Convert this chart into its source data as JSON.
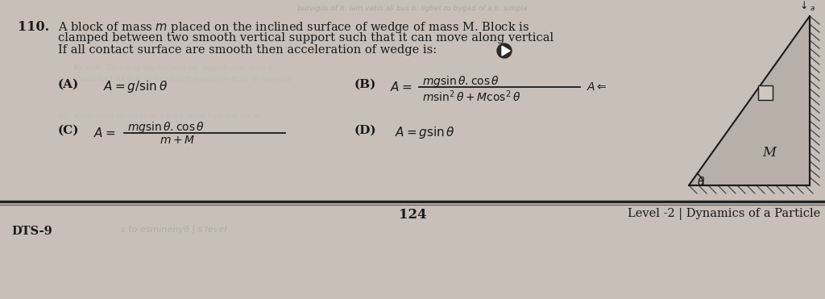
{
  "bg_color": "#c8c0b8",
  "text_color": "#111111",
  "question_number": "110.",
  "q_line1": "A block of mass $m$ placed on the inclined surface of wedge of mass M. Block is",
  "q_line2": "clamped between two smooth vertical support such that it can move along vertical",
  "q_line3": "If all contact surface are smooth then acceleration of wedge is:",
  "opt_A_label": "(A)",
  "opt_A_text": "$A =g/\\sin\\theta$",
  "opt_B_label": "(B)",
  "opt_B_eq": "$A=$",
  "opt_B_num": "$mg\\sin\\theta.\\cos\\theta$",
  "opt_B_den": "$m\\sin^2\\theta+M\\cos^2\\theta$",
  "opt_B_suffix": "$A\\Leftarrow$",
  "opt_C_label": "(C)",
  "opt_C_eq": "$A=$",
  "opt_C_num": "$mg\\sin\\theta.\\cos\\theta$",
  "opt_C_den": "$m+M$",
  "opt_D_label": "(D)",
  "opt_D_text": "$A=g\\sin\\theta$",
  "wedge_label": "M",
  "wedge_theta": "$\\theta$",
  "wedge_top": "$\\downarrow_a$",
  "page_number": "124",
  "level_text": "Level -2 | Dynamics of a Particle",
  "dts_label": "DTS-9",
  "ghost_header": "butvigils of it. lam vatio all bus b. ligbet to bygad of a b. simpla",
  "ghost_footer": "s to esminenyθ | s level"
}
